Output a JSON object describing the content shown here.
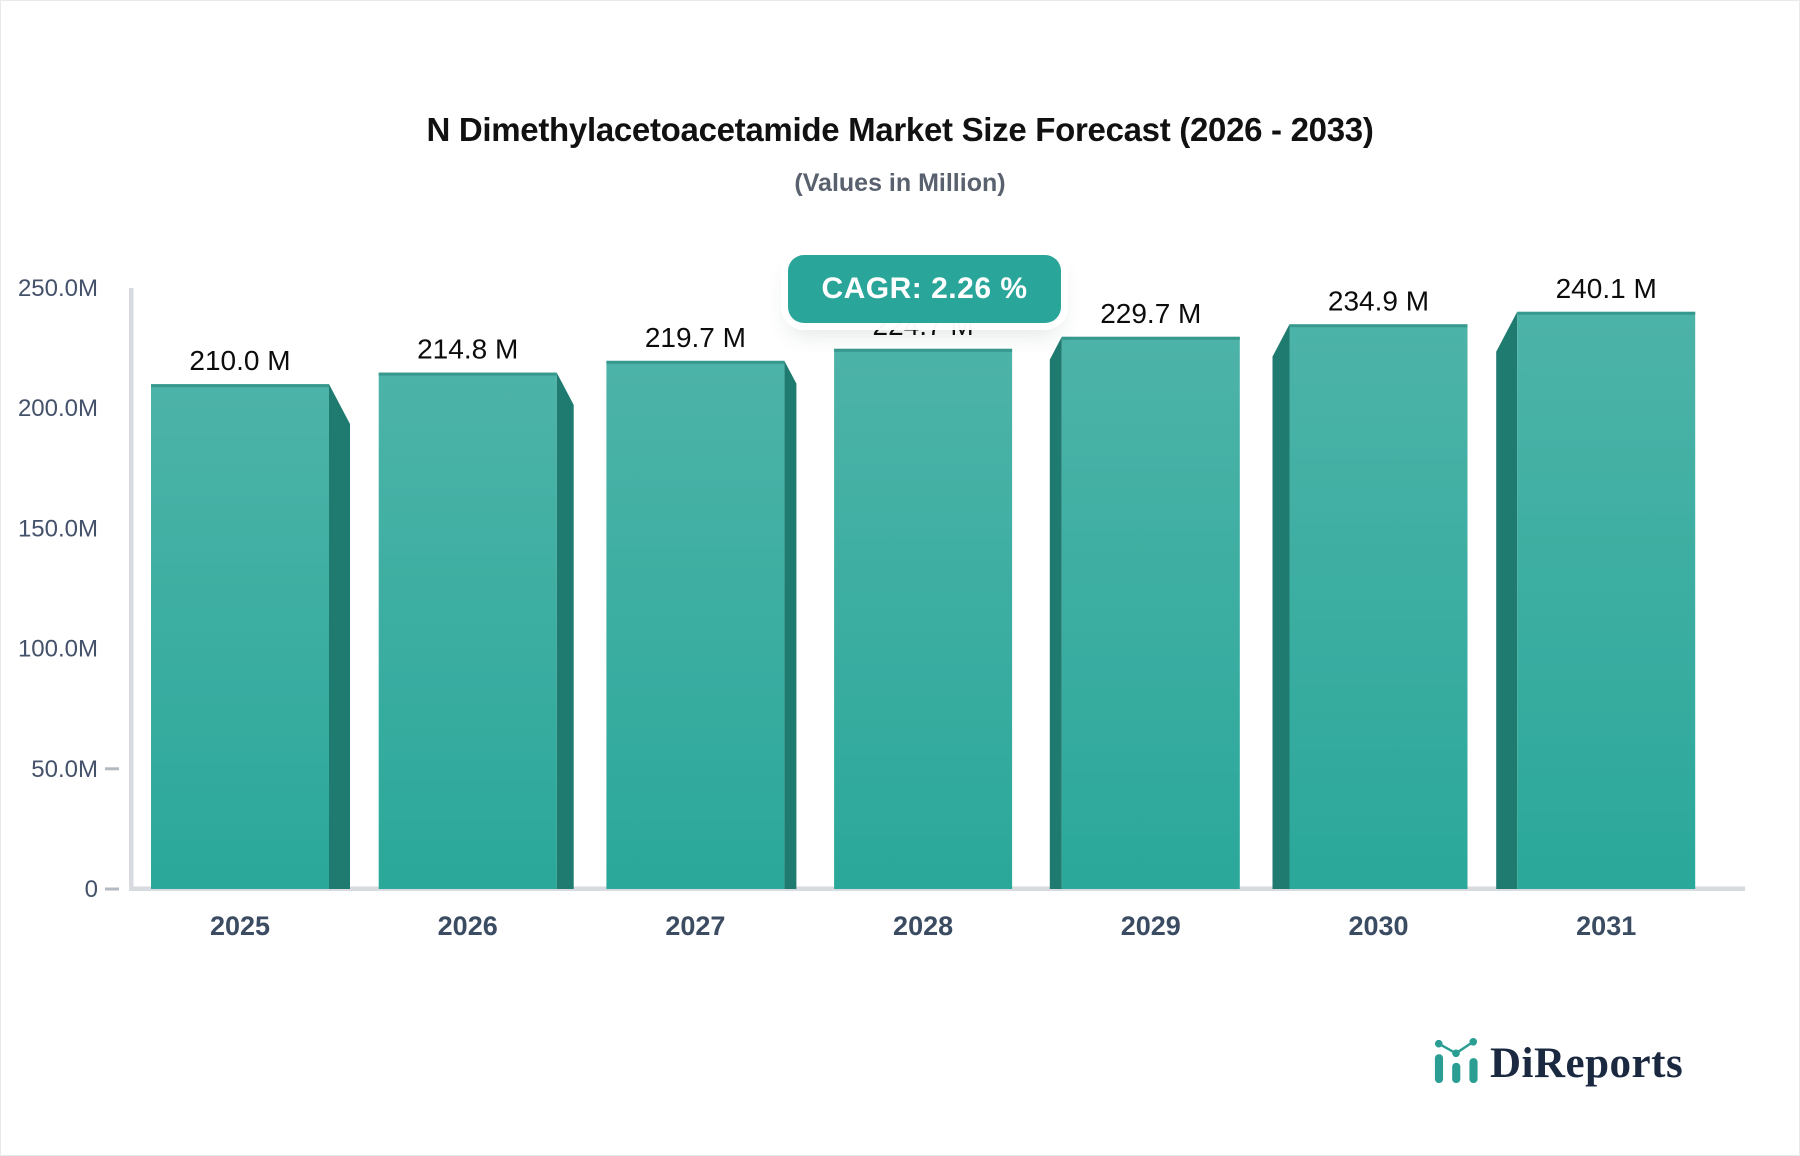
{
  "page": {
    "background": "#ffffff",
    "border_color": "#e7e9ed"
  },
  "header": {
    "title": "N Dimethylacetoacetamide Market Size Forecast (2026 - 2033)",
    "subtitle": "(Values in Million)"
  },
  "badge": {
    "label": "CAGR: 2.26 %",
    "background": "#2aa59a",
    "text_color": "#ffffff"
  },
  "logo": {
    "name": "DiReports",
    "icon": "bar-line-chart-icon",
    "icon_color": "#2b9e94",
    "text_color": "#1a2840"
  },
  "chart_data": {
    "type": "bar",
    "title": "N Dimethylacetoacetamide Market Size Forecast (2026 - 2033)",
    "subtitle": "(Values in Million)",
    "categories": [
      "2025",
      "2026",
      "2027",
      "2028",
      "2029",
      "2030",
      "2031"
    ],
    "values": [
      210.0,
      214.8,
      219.7,
      224.7,
      229.7,
      234.9,
      240.1
    ],
    "value_labels": [
      "210.0 M",
      "214.8 M",
      "219.7 M",
      "224.7 M",
      "229.7 M",
      "234.9 M",
      "240.1 M"
    ],
    "cagr_percent": 2.26,
    "xlabel": "",
    "ylabel": "",
    "ylim": [
      0,
      250
    ],
    "y_tick_values": [
      250,
      200,
      150,
      100,
      50,
      0
    ],
    "y_tick_labels": [
      "250.0M",
      "200.0M",
      "150.0M",
      "100.0M",
      "50.0M",
      "0"
    ],
    "grid": false,
    "legend": "none",
    "colors": {
      "bar_face_top": "#4db3a8",
      "bar_face_bottom": "#2aa89a",
      "bar_top_line": "#37998e",
      "bar_side": "#1f7a70",
      "axis_line": "#d7dade",
      "tick_dash": "#b4bac2",
      "tick_text": "#44516a",
      "category_text": "#3b4c62",
      "value_text": "#0c0c0c"
    }
  }
}
